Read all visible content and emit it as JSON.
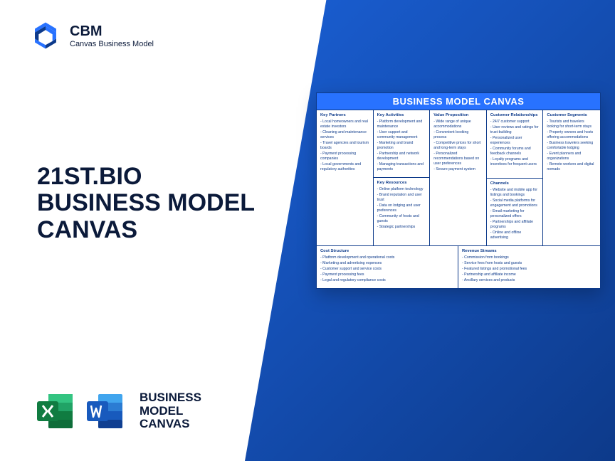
{
  "logo": {
    "abbr": "CBM",
    "sub": "Canvas Business Model"
  },
  "title": {
    "l1": "21ST.BIO",
    "l2": "BUSINESS MODEL",
    "l3": "CANVAS",
    "fontsize": 34
  },
  "formats": {
    "l1": "BUSINESS",
    "l2": "MODEL",
    "l3": "CANVAS",
    "fontsize": 17
  },
  "colors": {
    "primary": "#2872ff",
    "dark": "#0d3a8a",
    "titleColor": "#0b1a3a",
    "excel": "#107c41",
    "word": "#185abd"
  },
  "canvas": {
    "heading": "BUSINESS MODEL CANVAS",
    "partners": {
      "h": "Key Partners",
      "items": [
        "Local homeowners and real estate investors",
        "Cleaning and maintenance services",
        "Travel agencies and tourism boards",
        "Payment processing companies",
        "Local governments and regulatory authorities"
      ]
    },
    "activities": {
      "h": "Key Activities",
      "items": [
        "Platform development and maintenance",
        "User support and community management",
        "Marketing and brand promotion",
        "Partnership and network development",
        "Managing transactions and payments"
      ]
    },
    "resources": {
      "h": "Key Resources",
      "items": [
        "Online platform technology",
        "Brand reputation and user trust",
        "Data on lodging and user preferences",
        "Community of hosts and guests",
        "Strategic partnerships"
      ]
    },
    "value": {
      "h": "Value Proposition",
      "items": [
        "Wide range of unique accommodations",
        "Convenient booking process",
        "Competitive prices for short and long-term stays",
        "Personalized recommendations based on user preferences",
        "Secure payment system"
      ]
    },
    "relationships": {
      "h": "Customer Relationships",
      "items": [
        "24/7 customer support",
        "User reviews and ratings for trust-building",
        "Personalized user experiences",
        "Community forums and feedback channels",
        "Loyalty programs and incentives for frequent users"
      ]
    },
    "channels": {
      "h": "Channels",
      "items": [
        "Website and mobile app for listings and bookings",
        "Social media platforms for engagement and promotions",
        "Email marketing for personalized offers",
        "Partnerships and affiliate programs",
        "Online and offline advertising"
      ]
    },
    "segments": {
      "h": "Customer Segments",
      "items": [
        "Tourists and travelers looking for short-term stays",
        "Property owners and hosts offering accommodations",
        "Business travelers seeking comfortable lodging",
        "Event planners and organizations",
        "Remote workers and digital nomads"
      ]
    },
    "cost": {
      "h": "Cost Structure",
      "items": [
        "Platform development and operational costs",
        "Marketing and advertising expenses",
        "Customer support and service costs",
        "Payment processing fees",
        "Legal and regulatory compliance costs"
      ]
    },
    "revenue": {
      "h": "Revenue Streams",
      "items": [
        "Commission from bookings",
        "Service fees from hosts and guests",
        "Featured listings and promotional fees",
        "Partnership and affiliate income",
        "Ancillary services and products"
      ]
    }
  }
}
